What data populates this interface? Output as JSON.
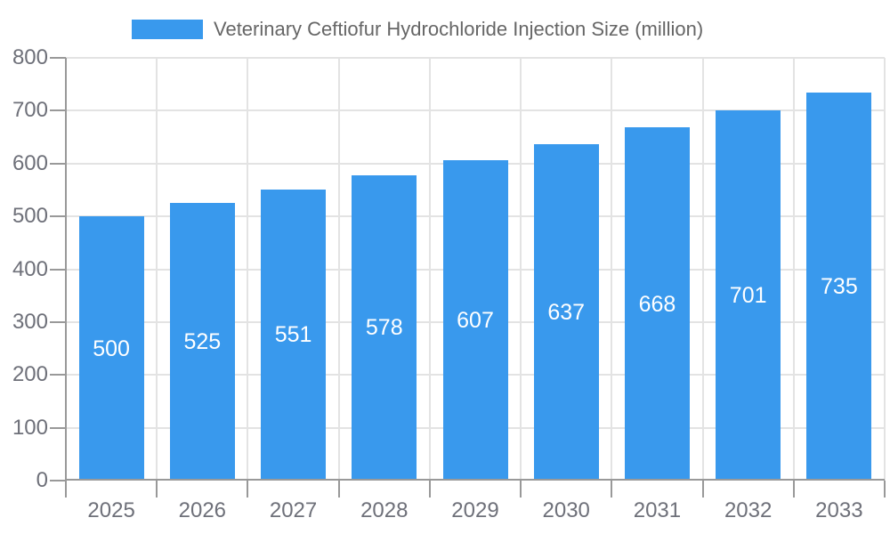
{
  "legend": {
    "label": "Veterinary Ceftiofur Hydrochloride Injection Size (million)"
  },
  "chart_data": {
    "type": "bar",
    "title": "Veterinary Ceftiofur Hydrochloride Injection Size (million)",
    "categories": [
      "2025",
      "2026",
      "2027",
      "2028",
      "2029",
      "2030",
      "2031",
      "2032",
      "2033"
    ],
    "values": [
      500,
      525,
      551,
      578,
      607,
      637,
      668,
      701,
      735
    ],
    "xlabel": "",
    "ylabel": "",
    "ylim": [
      0,
      800
    ],
    "ytick_interval": 100,
    "ytick_labels": [
      "0",
      "100",
      "200",
      "300",
      "400",
      "500",
      "600",
      "700",
      "800"
    ],
    "grid": true,
    "legend_position": "top-left",
    "bar_labels_position": "inside-middle",
    "colors": {
      "bar": "#3999ED",
      "bar_label_text": "#FFFFFF",
      "grid_line": "#E3E3E3",
      "axis_line": "#999999",
      "axis_label_text": "#6E7079",
      "legend_text": "#666666",
      "background": "#FFFFFF"
    }
  }
}
